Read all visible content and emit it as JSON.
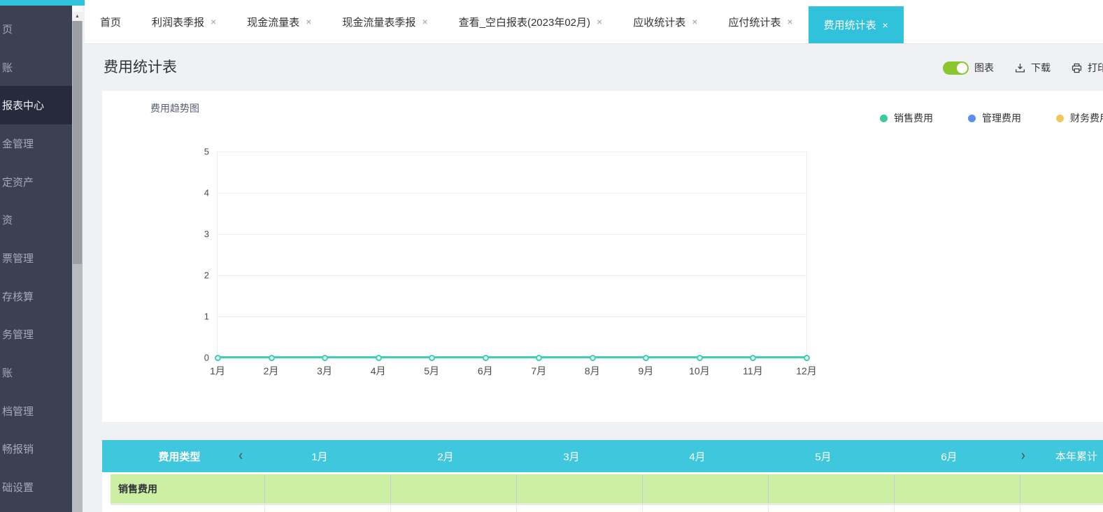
{
  "colors": {
    "accent_tab": "#30C1DB",
    "table_header": "#3FC7DD",
    "sidebar_bg": "#3B4053",
    "sidebar_active_bg": "#262A3C",
    "page_bg": "#F0F1F5",
    "toggle_on": "#8BC62F",
    "line_color": "#3CCFB0",
    "row_green_bg": "#CBEFA3",
    "legend_green": "#3ACB9C",
    "legend_blue": "#5C8DF6",
    "legend_yellow": "#EFC75E"
  },
  "icons": {
    "scroll_up": "▲",
    "close": "×",
    "prev": "‹",
    "next": "›"
  },
  "sidebar": {
    "items": [
      {
        "label": "页",
        "active": false
      },
      {
        "label": "账",
        "active": false
      },
      {
        "label": "报表中心",
        "active": true
      },
      {
        "label": "金管理",
        "active": false
      },
      {
        "label": "定资产",
        "active": false
      },
      {
        "label": "资",
        "active": false
      },
      {
        "label": "票管理",
        "active": false
      },
      {
        "label": "存核算",
        "active": false
      },
      {
        "label": "务管理",
        "active": false
      },
      {
        "label": "账",
        "active": false
      },
      {
        "label": "档管理",
        "active": false
      },
      {
        "label": "畅报销",
        "active": false
      },
      {
        "label": "础设置",
        "active": false
      }
    ]
  },
  "tabbar": {
    "tabs": [
      {
        "label": "首页",
        "closable": false,
        "active": false
      },
      {
        "label": "利润表季报",
        "closable": true,
        "active": false
      },
      {
        "label": "现金流量表",
        "closable": true,
        "active": false
      },
      {
        "label": "现金流量表季报",
        "closable": true,
        "active": false
      },
      {
        "label": "查看_空白报表(2023年02月)",
        "closable": true,
        "active": false
      },
      {
        "label": "应收统计表",
        "closable": true,
        "active": false
      },
      {
        "label": "应付统计表",
        "closable": true,
        "active": false
      },
      {
        "label": "费用统计表",
        "closable": true,
        "active": true
      }
    ]
  },
  "header": {
    "title": "费用统计表",
    "chart_toggle_label": "图表",
    "chart_toggle_on": true,
    "download_label": "下载",
    "print_label": "打印"
  },
  "chart": {
    "title": "费用趋势图",
    "legend": [
      {
        "label": "销售费用",
        "color": "#3ACB9C"
      },
      {
        "label": "管理费用",
        "color": "#5C8DF6"
      },
      {
        "label": "财务费用",
        "color": "#EFC75E"
      }
    ]
  },
  "chart_data": {
    "type": "line",
    "title": "费用趋势图",
    "categories": [
      "1月",
      "2月",
      "3月",
      "4月",
      "5月",
      "6月",
      "7月",
      "8月",
      "9月",
      "10月",
      "11月",
      "12月"
    ],
    "series": [
      {
        "name": "销售费用",
        "color": "#3CCFB0",
        "values": [
          0,
          0,
          0,
          0,
          0,
          0,
          0,
          0,
          0,
          0,
          0,
          0
        ]
      },
      {
        "name": "管理费用",
        "color": "#5C8DF6",
        "values": [
          0,
          0,
          0,
          0,
          0,
          0,
          0,
          0,
          0,
          0,
          0,
          0
        ]
      },
      {
        "name": "财务费用",
        "color": "#EFC75E",
        "values": [
          0,
          0,
          0,
          0,
          0,
          0,
          0,
          0,
          0,
          0,
          0,
          0
        ]
      }
    ],
    "ylim": [
      0,
      5
    ],
    "yticks": [
      0,
      1,
      2,
      3,
      4,
      5
    ],
    "grid": true,
    "legend_position": "top-right"
  },
  "table": {
    "first_col": "费用类型",
    "months": [
      "1月",
      "2月",
      "3月",
      "4月",
      "5月",
      "6月"
    ],
    "last_col": "本年累计",
    "rows": [
      {
        "type": "销售费用",
        "values": [
          "",
          "",
          "",
          "",
          "",
          ""
        ],
        "total": ""
      }
    ]
  }
}
